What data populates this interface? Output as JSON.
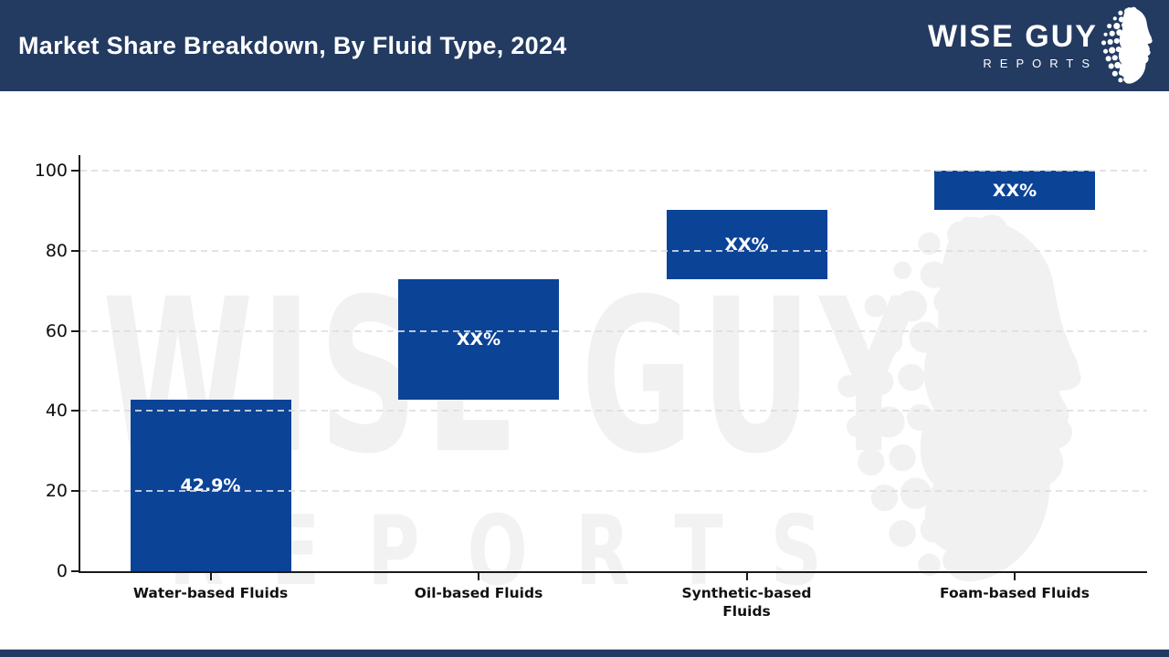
{
  "header": {
    "title": "Market Share Breakdown, By Fluid Type, 2024",
    "bg_color": "#233a61",
    "logo": {
      "line1": "WISE GUY",
      "line2": "REPORTS"
    }
  },
  "watermark": {
    "line1": "WISE GUY",
    "line2": "REPORTS"
  },
  "chart_data": {
    "type": "bar",
    "subtype": "waterfall",
    "categories": [
      "Water-based Fluids",
      "Oil-based Fluids",
      "Synthetic-based\nFluids",
      "Foam-based Fluids"
    ],
    "segments": [
      {
        "start": 0,
        "end": 42.9,
        "label": "42.9%"
      },
      {
        "start": 42.9,
        "end": 72.9,
        "label": "XX%"
      },
      {
        "start": 72.9,
        "end": 90.1,
        "label": "XX%"
      },
      {
        "start": 90.1,
        "end": 100,
        "label": "XX%"
      }
    ],
    "yticks": [
      0,
      20,
      40,
      60,
      80,
      100
    ],
    "ylim": [
      0,
      104
    ],
    "grid": "horizontal-dashed",
    "legend": "none",
    "bar_color": "#0b4397",
    "bar_label_color": "#ffffff",
    "axis_color": "#1a1a1a",
    "grid_color": "#e2e2e2",
    "xlabel": "",
    "ylabel": ""
  },
  "footer": {
    "bar_color": "#233a61"
  }
}
